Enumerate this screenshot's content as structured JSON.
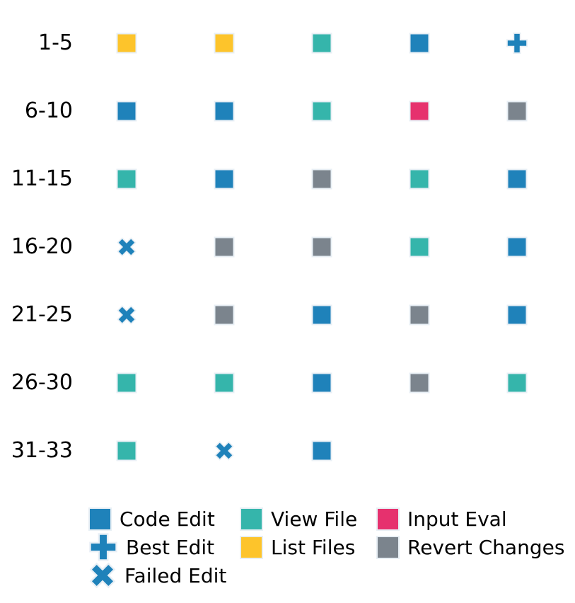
{
  "chart_data": {
    "type": "scatter",
    "description": "Categorical event-sequence plot: agent actions shown five steps per row, rows labeled by step ranges",
    "steps_per_row": 5,
    "total_steps": 33,
    "row_labels": [
      "1-5",
      "6-10",
      "11-15",
      "16-20",
      "21-25",
      "26-30",
      "31-33"
    ],
    "rows": [
      [
        "List Files",
        "List Files",
        "View File",
        "Code Edit",
        "Best Edit"
      ],
      [
        "Code Edit",
        "Code Edit",
        "View File",
        "Input Eval",
        "Revert Changes"
      ],
      [
        "View File",
        "Code Edit",
        "Revert Changes",
        "View File",
        "Code Edit"
      ],
      [
        "Failed Edit",
        "Revert Changes",
        "Revert Changes",
        "View File",
        "Code Edit"
      ],
      [
        "Failed Edit",
        "Revert Changes",
        "Code Edit",
        "Revert Changes",
        "Code Edit"
      ],
      [
        "View File",
        "View File",
        "Code Edit",
        "Revert Changes",
        "View File"
      ],
      [
        "View File",
        "Failed Edit",
        "Code Edit"
      ]
    ],
    "actions": {
      "Code Edit": {
        "marker": "square",
        "color": "#1f82ba"
      },
      "View File": {
        "marker": "square",
        "color": "#35b5ab"
      },
      "Input Eval": {
        "marker": "square",
        "color": "#e6316e"
      },
      "List Files": {
        "marker": "square",
        "color": "#fdc42b"
      },
      "Revert Changes": {
        "marker": "square",
        "color": "#7b848d"
      },
      "Best Edit": {
        "marker": "plus",
        "color": "#1f82ba"
      },
      "Failed Edit": {
        "marker": "x",
        "color": "#1f82ba"
      }
    },
    "marker_edge_color": "#e8eff5",
    "legend": {
      "position": "bottom-center",
      "columns": [
        [
          "Code Edit",
          "Best Edit",
          "Failed Edit"
        ],
        [
          "View File",
          "List Files"
        ],
        [
          "Input Eval",
          "Revert Changes"
        ]
      ]
    },
    "grid": false,
    "title": "",
    "xlabel": "",
    "ylabel": ""
  }
}
